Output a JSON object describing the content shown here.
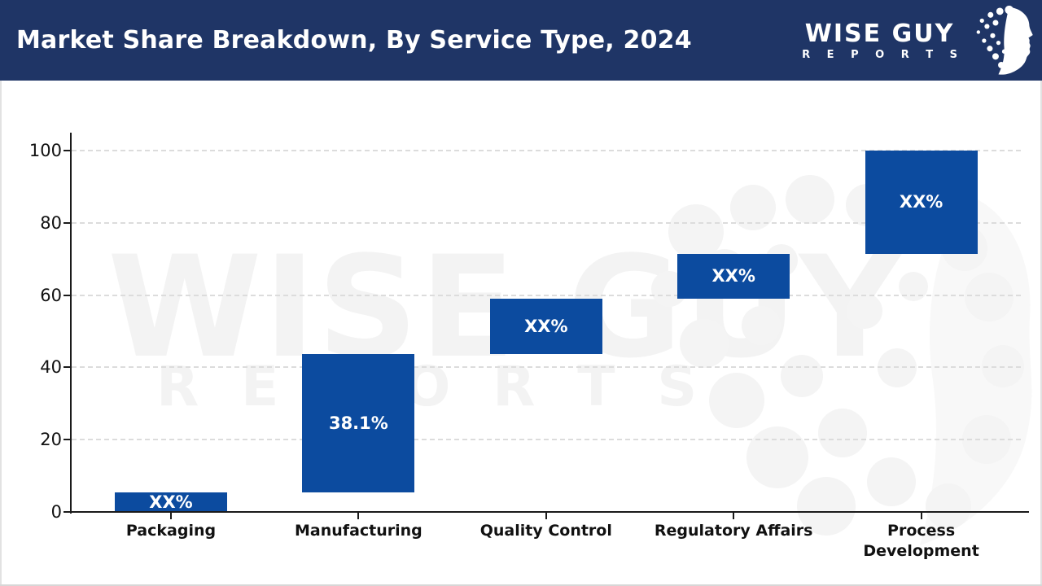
{
  "header": {
    "title": "Market Share Breakdown, By Service Type, 2024",
    "bg_color": "#1f3566",
    "logo": {
      "wordmark": "WISE GUY",
      "subtext": "R E P O R T S"
    }
  },
  "watermark": {
    "wordmark": "WISE GUY",
    "subtext": "R E P O R T S"
  },
  "chart_data": {
    "type": "bar",
    "subtype": "waterfall",
    "title": "Market Share Breakdown, By Service Type, 2024",
    "categories": [
      "Packaging",
      "Manufacturing",
      "Quality Control",
      "Regulatory Affairs",
      "Process\nDevelopment"
    ],
    "segments": [
      {
        "category": "Packaging",
        "start": 0,
        "end": 5.5,
        "label": "XX%"
      },
      {
        "category": "Manufacturing",
        "start": 5.5,
        "end": 43.6,
        "label": "38.1%"
      },
      {
        "category": "Quality Control",
        "start": 43.6,
        "end": 59.1,
        "label": "XX%"
      },
      {
        "category": "Regulatory Affairs",
        "start": 59.1,
        "end": 71.5,
        "label": "XX%"
      },
      {
        "category": "Process\nDevelopment",
        "start": 71.5,
        "end": 100,
        "label": "XX%"
      }
    ],
    "y_ticks": [
      0,
      20,
      40,
      60,
      80,
      100
    ],
    "ylim": [
      0,
      105
    ],
    "xlabel": "",
    "ylabel": "",
    "grid": "horizontal-dashed",
    "legend": null,
    "bar_color": "#0c4b9f",
    "bar_label_color": "#ffffff",
    "axis_color": "#1a1a1a",
    "gridline_color": "#dcdcdc"
  }
}
